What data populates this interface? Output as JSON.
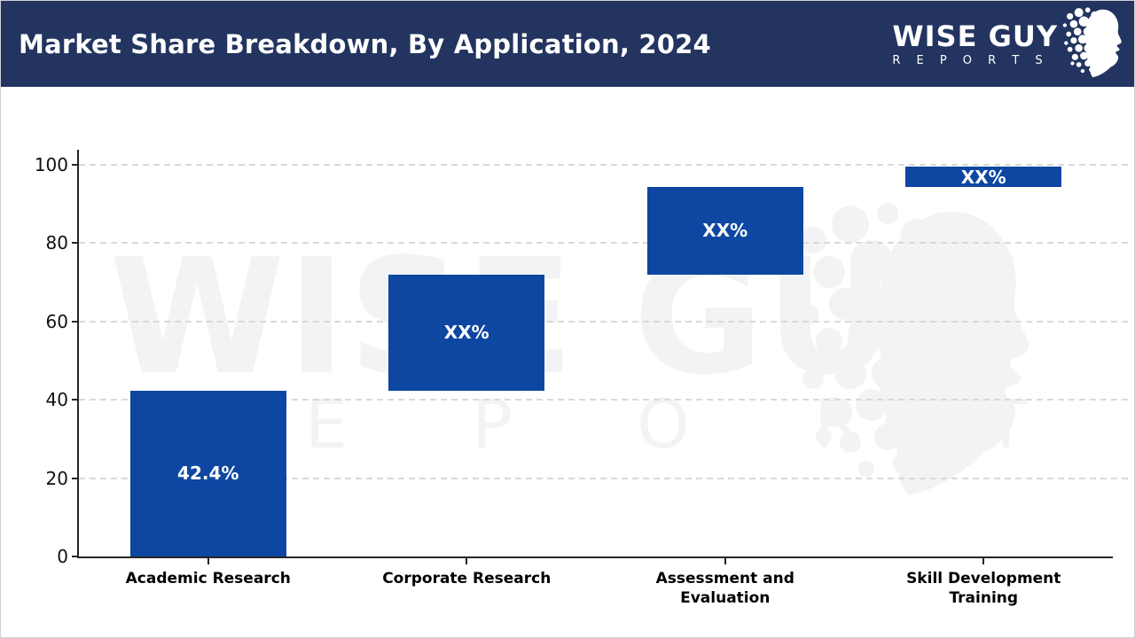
{
  "header": {
    "title": "Market Share Breakdown, By Application, 2024",
    "bg_color": "#22345f",
    "logo": {
      "wordmark": "WISE GUY",
      "tagline": "R E P O R T S"
    }
  },
  "watermark": {
    "wordmark": "WISE GUY",
    "tagline": "R E P O R T S"
  },
  "chart_data": {
    "type": "bar",
    "variant": "waterfall",
    "title": "Market Share Breakdown, By Application, 2024",
    "categories": [
      "Academic Research",
      "Corporate Research",
      "Assessment and Evaluation",
      "Skill Development Training"
    ],
    "bars": [
      {
        "category": "Academic Research",
        "start": 0,
        "end": 42.4,
        "label": "42.4%"
      },
      {
        "category": "Corporate Research",
        "start": 42.4,
        "end": 72.0,
        "label": "XX%"
      },
      {
        "category": "Assessment and Evaluation",
        "start": 72.0,
        "end": 94.3,
        "label": "XX%"
      },
      {
        "category": "Skill Development Training",
        "start": 94.3,
        "end": 99.5,
        "label": "XX%"
      }
    ],
    "xlabel": "",
    "ylabel": "",
    "ylim": [
      0,
      100
    ],
    "yticks": [
      0,
      20,
      40,
      60,
      80,
      100
    ],
    "grid": "horizontal-dashed",
    "legend": "none",
    "bar_color": "#0d47a1",
    "bar_label_color": "#ffffff",
    "axis_color": "#262626",
    "grid_color": "#d9d9d9"
  }
}
